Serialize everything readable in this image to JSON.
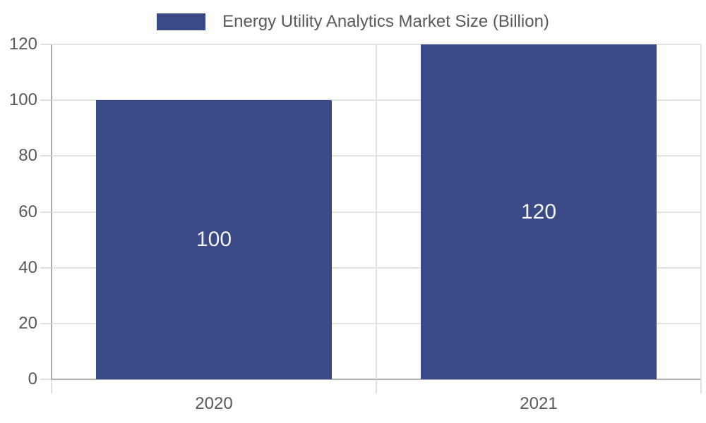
{
  "legend": {
    "label": "Energy Utility Analytics Market Size (Billion)"
  },
  "chart_data": {
    "type": "bar",
    "title": "Energy Utility Analytics Market Size (Billion)",
    "categories": [
      "2020",
      "2021"
    ],
    "values": [
      100,
      120
    ],
    "xlabel": "",
    "ylabel": "",
    "ylim": [
      0,
      120
    ],
    "yticks": [
      0,
      20,
      40,
      60,
      80,
      100,
      120
    ],
    "grid": true,
    "legend_position": "top-center",
    "data_label_position": "inside-center",
    "colors": {
      "bar": "#394a87",
      "tick_text": "#595959",
      "legend_text": "#595959",
      "axis_line": "#aaaaaa",
      "baseline": "#b0b0b0",
      "gridline": "#e3e3e3",
      "bar_label": "#f5f5f5",
      "background": "#ffffff"
    }
  }
}
